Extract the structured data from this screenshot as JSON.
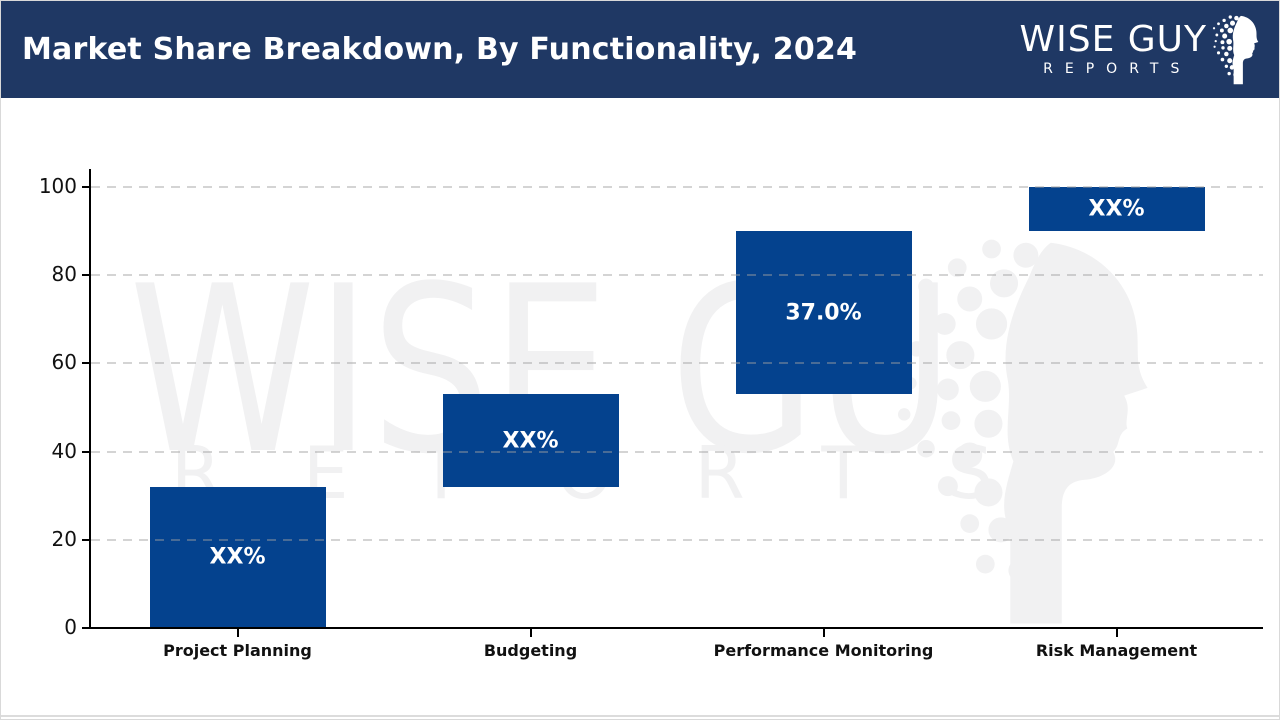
{
  "header": {
    "title": "Market Share Breakdown, By Functionality, 2024",
    "logo": {
      "name": "WISE GUY",
      "sub": "REPORTS"
    }
  },
  "watermark": {
    "text_main": "WISE GU",
    "text_sub": "REPORTS"
  },
  "chart_data": {
    "type": "bar",
    "subtype": "waterfall-floating-bars",
    "title": "Market Share Breakdown, By Functionality, 2024",
    "categories": [
      "Project Planning",
      "Budgeting",
      "Performance Monitoring",
      "Risk Management"
    ],
    "segments": [
      {
        "category": "Project Planning",
        "start": 0,
        "end": 32,
        "size": 32,
        "value_label": "XX%"
      },
      {
        "category": "Budgeting",
        "start": 32,
        "end": 53,
        "size": 21,
        "value_label": "XX%"
      },
      {
        "category": "Performance Monitoring",
        "start": 53,
        "end": 90,
        "size": 37,
        "value_label": "37.0%"
      },
      {
        "category": "Risk Management",
        "start": 90,
        "end": 100,
        "size": 10,
        "value_label": "XX%"
      }
    ],
    "xlabel": "",
    "ylabel": "",
    "ylim": [
      0,
      104
    ],
    "yticks": [
      0,
      20,
      40,
      60,
      80,
      100
    ],
    "grid": "horizontal-dashed-over-bars",
    "legend": "none",
    "bar_color": "#04428E",
    "bar_label_color": "#FFFFFF"
  },
  "colors": {
    "header_bg": "#1F3864",
    "bar": "#04428E",
    "grid": "#C9C9C9",
    "axis": "#000000",
    "watermark": "#F1F1F2",
    "border": "#D9D9D9"
  }
}
